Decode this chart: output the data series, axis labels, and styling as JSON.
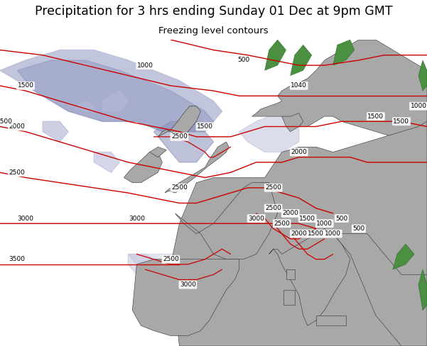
{
  "title": "Precipitation for 3 hrs ending Sunday 01 Dec at 9pm GMT",
  "subtitle": "Freezing level contours",
  "title_fontsize": 12.5,
  "subtitle_fontsize": 9.5,
  "fig_width": 6.01,
  "fig_height": 4.88,
  "dpi": 100,
  "ocean_color": "#c8cee8",
  "land_color": "#a8a8a8",
  "land_edge_color": "#303030",
  "green_color": "#4a9040",
  "precip_color": "#b8bcd8",
  "precip_heavy_color": "#8890b8",
  "contour_color": "#cc0000",
  "contour_lw": 1.0,
  "label_fontsize": 6.5,
  "header_bg": "#f0f0f0",
  "lon_min": -25,
  "lon_max": 25,
  "lat_min": 35,
  "lat_max": 65
}
